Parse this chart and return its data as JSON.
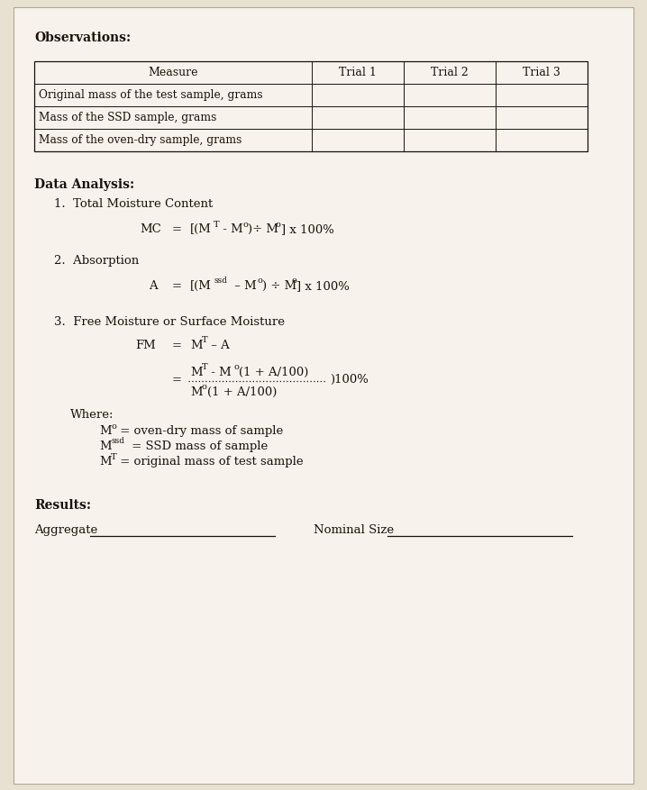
{
  "bg_color": "#e8e0d0",
  "paper_color": "#f7f3ec",
  "text_color": "#1a1208",
  "title_observations": "Observations:",
  "title_data_analysis": "Data Analysis:",
  "title_results": "Results:",
  "table_headers": [
    "Measure",
    "Trial 1",
    "Trial 2",
    "Trial 3"
  ],
  "table_rows": [
    "Original mass of the test sample, grams",
    "Mass of the SSD sample, grams",
    "Mass of the oven-dry sample, grams"
  ],
  "section1_title": "1.  Total Moisture Content",
  "section2_title": "2.  Absorption",
  "section3_title": "3.  Free Moisture or Surface Moisture",
  "where_title": "Where:",
  "results_aggregate": "Aggregate",
  "results_nominal": "Nominal Size",
  "fig_width": 7.18,
  "fig_height": 8.77,
  "dpi": 100
}
